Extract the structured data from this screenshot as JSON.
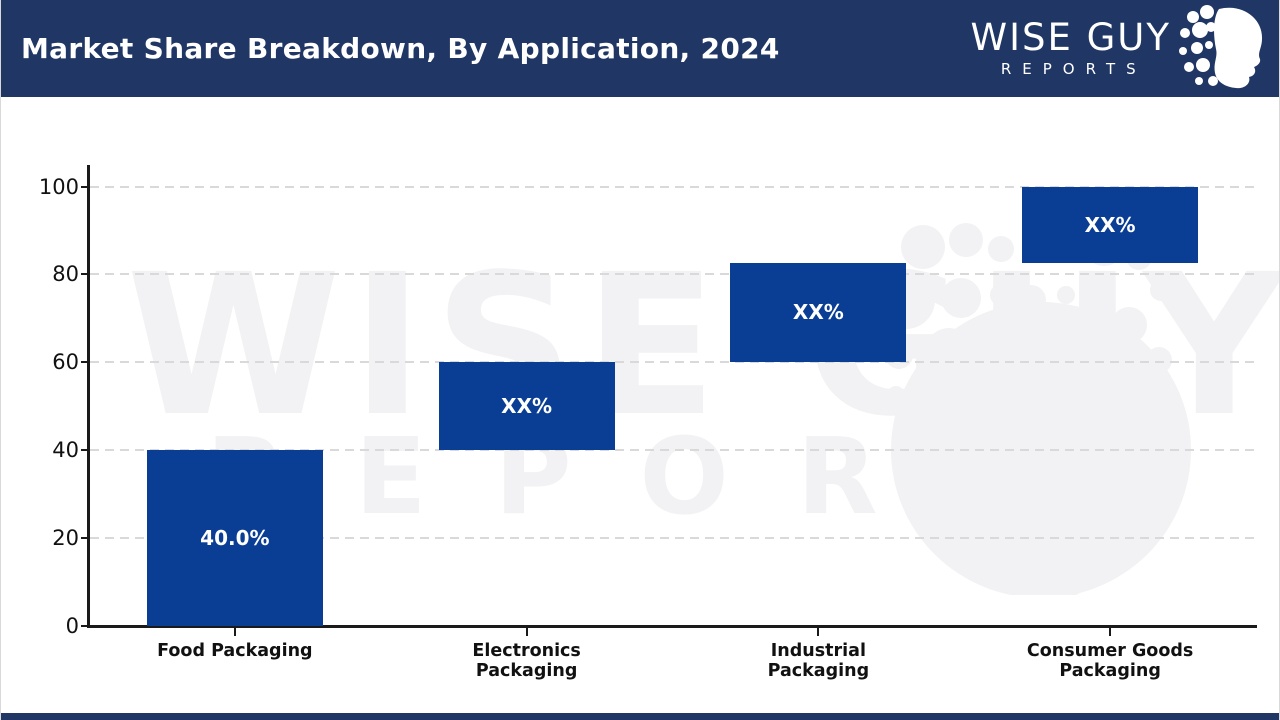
{
  "colors": {
    "navy": "#203664",
    "bar_blue": "#0a3e94",
    "grid": "#d9d9d9",
    "text": "#111111",
    "watermark": "#f2f2f4"
  },
  "header": {
    "title": "Market Share Breakdown, By Application, 2024",
    "logo": {
      "line1": "WISE GUY",
      "line2": "REPORTS"
    }
  },
  "watermark": {
    "line1": "WISE GUY",
    "line2": "REPORTS"
  },
  "chart_data": {
    "type": "bar",
    "subtype": "waterfall",
    "title": "Market Share Breakdown, By Application, 2024",
    "xlabel": "",
    "ylabel": "",
    "ylim": [
      0,
      105
    ],
    "yticks": [
      0,
      20,
      40,
      60,
      80,
      100
    ],
    "grid": "horizontal-dashed",
    "legend": "none",
    "bar_color": "#0a3e94",
    "value_label_color": "#ffffff",
    "categories": [
      "Food Packaging",
      "Electronics Packaging",
      "Industrial Packaging",
      "Consumer Goods Packaging"
    ],
    "category_label_lines": [
      [
        "Food Packaging"
      ],
      [
        "Electronics",
        "Packaging"
      ],
      [
        "Industrial",
        "Packaging"
      ],
      [
        "Consumer Goods",
        "Packaging"
      ]
    ],
    "segments": [
      {
        "category": "Food Packaging",
        "start": 0,
        "end": 40,
        "value_label": "40.0%"
      },
      {
        "category": "Electronics Packaging",
        "start": 40,
        "end": 60,
        "value_label": "XX%"
      },
      {
        "category": "Industrial Packaging",
        "start": 60,
        "end": 82.7,
        "value_label": "XX%"
      },
      {
        "category": "Consumer Goods Packaging",
        "start": 82.7,
        "end": 100,
        "value_label": "XX%"
      }
    ]
  }
}
